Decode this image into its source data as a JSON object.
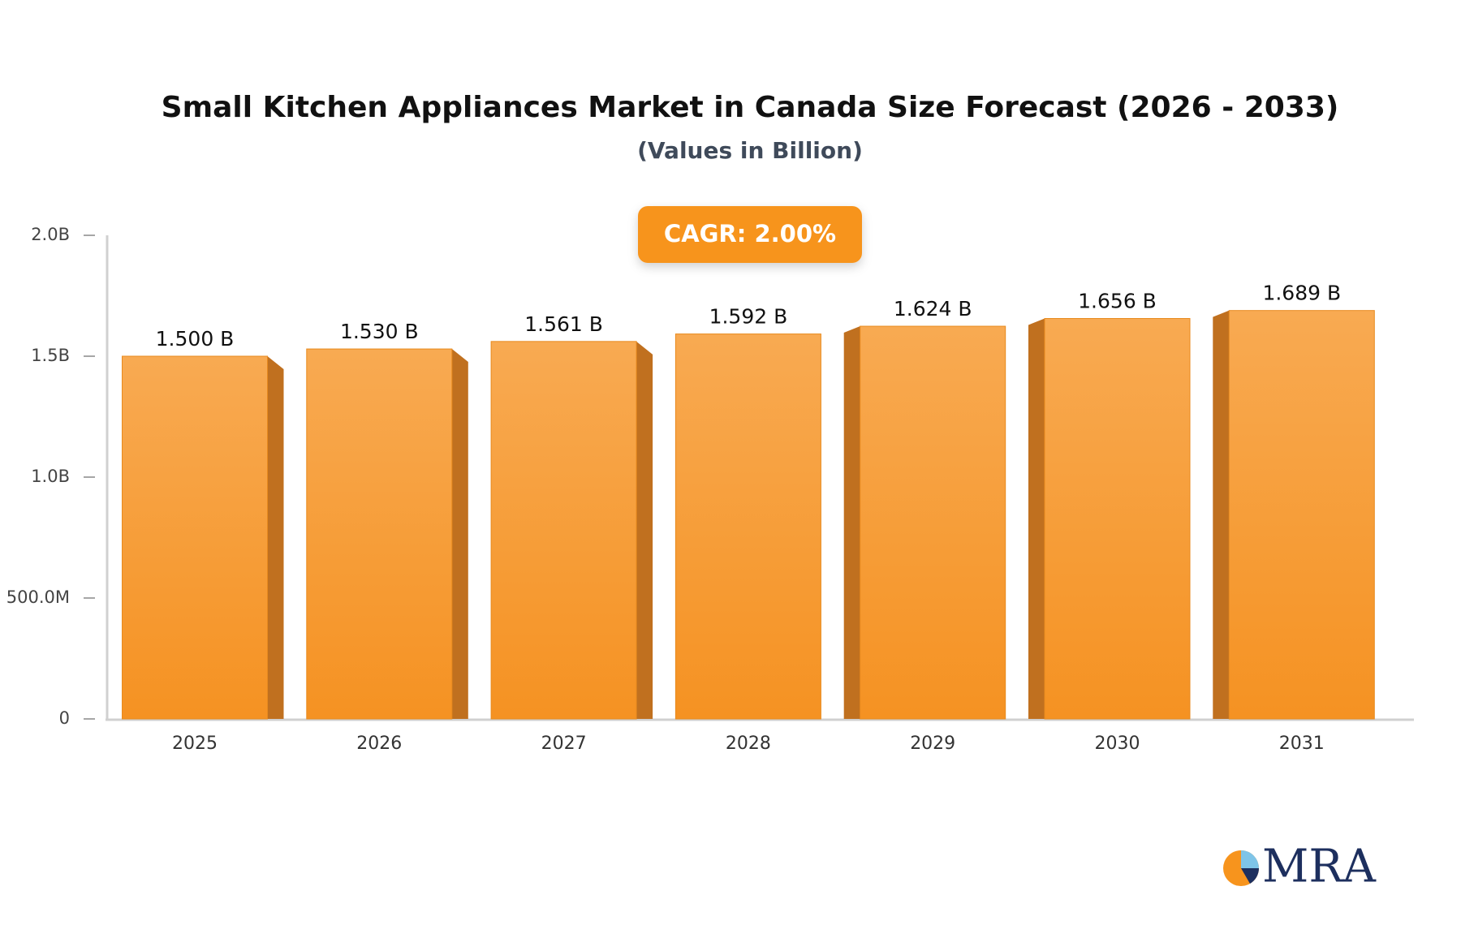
{
  "chart_data": {
    "type": "bar",
    "title": "Small Kitchen Appliances Market in Canada Size Forecast (2026 - 2033)",
    "subtitle": "(Values in Billion)",
    "annotation": "CAGR: 2.00%",
    "categories": [
      "2025",
      "2026",
      "2027",
      "2028",
      "2029",
      "2030",
      "2031"
    ],
    "values": [
      1.5,
      1.53,
      1.561,
      1.592,
      1.624,
      1.656,
      1.689
    ],
    "value_labels": [
      "1.500 B",
      "1.530 B",
      "1.561 B",
      "1.592 B",
      "1.624 B",
      "1.656 B",
      "1.689 B"
    ],
    "color": "#f7a145",
    "ylim": [
      0,
      2.0
    ],
    "yticks": [
      0,
      {
        "value": 0.5,
        "label": "500.0M"
      },
      {
        "value": 1.0,
        "label": "1.0B"
      },
      {
        "value": 1.5,
        "label": "1.5B"
      },
      {
        "value": 2.0,
        "label": "2.0B"
      }
    ],
    "grid": false
  },
  "logo": "MRA"
}
